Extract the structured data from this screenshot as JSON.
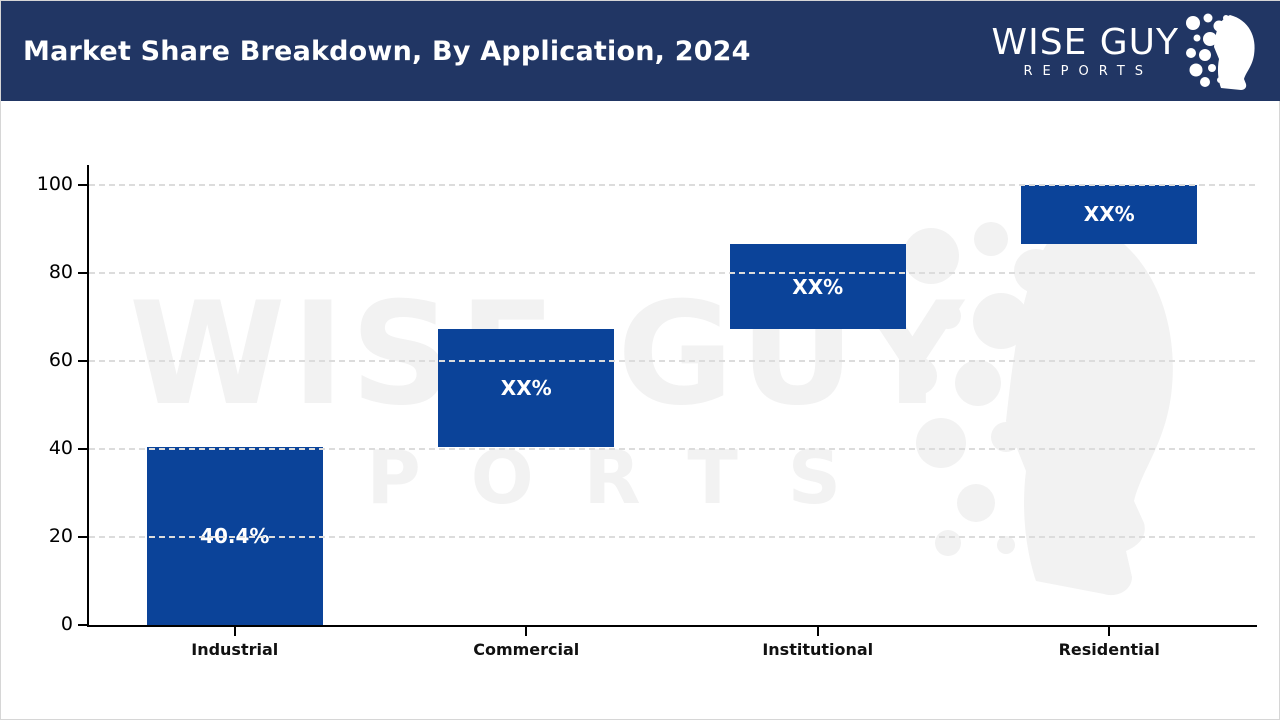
{
  "header": {
    "title": "Market Share Breakdown, By Application, 2024",
    "bg_color": "#213664",
    "logo": {
      "line1": "WISE GUY",
      "line2": "REPORTS"
    }
  },
  "watermark": {
    "line1": "WISE GUY",
    "line2": "REPORTS"
  },
  "chart_data": {
    "type": "bar",
    "subtype": "waterfall-floating-segments",
    "title": "Market Share Breakdown, By Application, 2024",
    "categories": [
      "Industrial",
      "Commercial",
      "Institutional",
      "Residential"
    ],
    "segments": [
      {
        "category": "Industrial",
        "start": 0,
        "end": 40.4,
        "label": "40.4%"
      },
      {
        "category": "Commercial",
        "start": 40.4,
        "end": 67.2,
        "label": "XX%"
      },
      {
        "category": "Institutional",
        "start": 67.2,
        "end": 86.6,
        "label": "XX%"
      },
      {
        "category": "Residential",
        "start": 86.6,
        "end": 100,
        "label": "XX%"
      }
    ],
    "xlabel": "",
    "ylabel": "",
    "ylim": [
      0,
      100
    ],
    "yticks": [
      "0",
      "20",
      "40",
      "60",
      "80",
      "100"
    ],
    "grid": "horizontal dashed, drawn over bars",
    "legend": "none",
    "bar_color": "#0b4399",
    "bar_label_color": "#ffffff",
    "axis_color": "#000000",
    "gridline_color": "#dcdcdc"
  }
}
